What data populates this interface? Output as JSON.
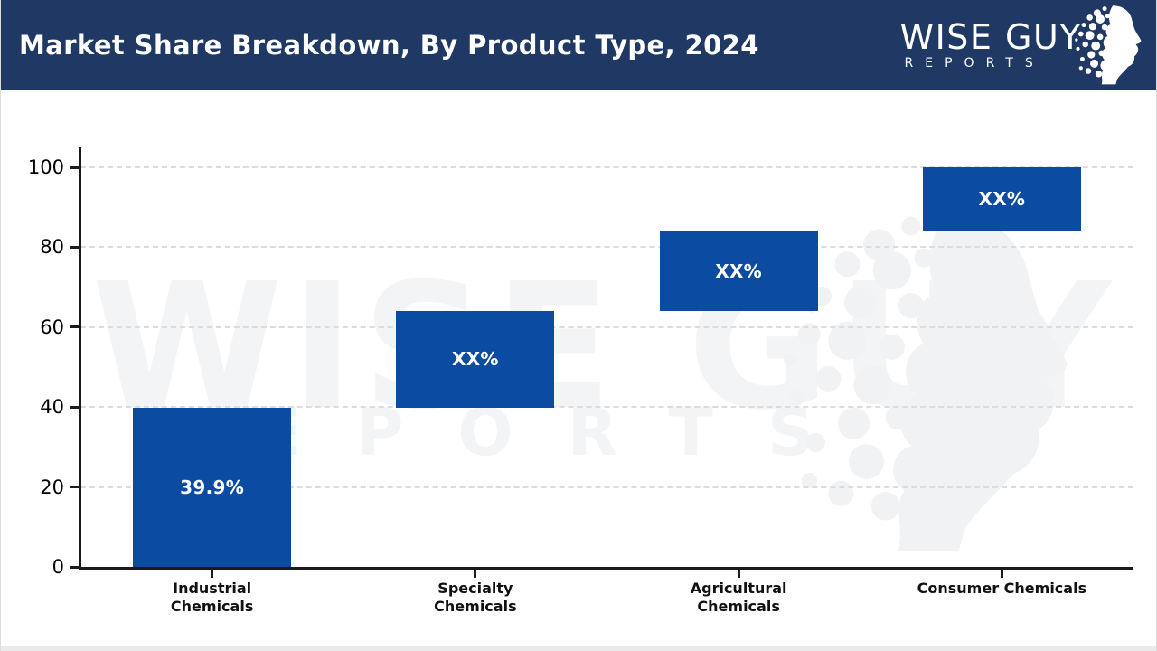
{
  "header": {
    "title": "Market Share Breakdown, By Product Type, 2024",
    "bg_color": "#1f3864",
    "logo": {
      "line1": "WISE GUY",
      "line2": "REPORTS"
    }
  },
  "watermark": {
    "line1": "WISE GUY",
    "line2": "REPORTS"
  },
  "chart_data": {
    "type": "bar",
    "subtype": "waterfall",
    "title": "Market Share Breakdown, By Product Type, 2024",
    "categories": [
      [
        "Industrial",
        "Chemicals"
      ],
      [
        "Specialty",
        "Chemicals"
      ],
      [
        "Agricultural",
        "Chemicals"
      ],
      [
        "Consumer Chemicals"
      ]
    ],
    "bars": [
      {
        "label": "39.9%",
        "start": 0,
        "end": 39.9
      },
      {
        "label": "XX%",
        "start": 39.9,
        "end": 64.1
      },
      {
        "label": "XX%",
        "start": 64.1,
        "end": 84.1
      },
      {
        "label": "XX%",
        "start": 84.1,
        "end": 100
      }
    ],
    "bar_color": "#0b4ba1",
    "bar_label_color": "#ffffff",
    "yticks": [
      0,
      20,
      40,
      60,
      80,
      100
    ],
    "ylim": [
      0,
      105
    ],
    "xlabel": "",
    "ylabel": "",
    "grid": "horizontal-dashed",
    "gridline_color": "#dcdcdc",
    "legend": "none"
  },
  "colors": {
    "header_bg": "#1f3864",
    "bar_blue": "#0b4ba1",
    "watermark_gray": "#f3f4f6",
    "axis_black": "#1b1b1b"
  }
}
